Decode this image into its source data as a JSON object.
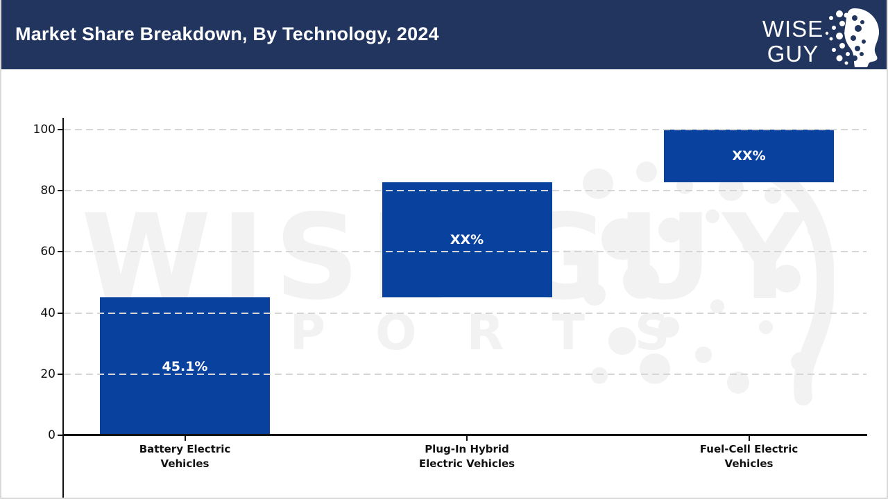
{
  "header": {
    "title": "Market Share Breakdown, By Technology, 2024",
    "logo": {
      "brand_top": "WISE GUY",
      "brand_bottom": "REPORTS"
    }
  },
  "watermark": {
    "line1": "WISE GUY",
    "line2": "REPORTS"
  },
  "colors": {
    "header_bg": "#21355F",
    "bar": "#09419E",
    "grid": "#D6D6D6",
    "axis": "#111111",
    "value_label": "#FFFFFF",
    "watermark": "#F2F2F2",
    "frame_border": "#D9D9D9"
  },
  "chart_data": {
    "type": "bar",
    "subtype": "waterfall",
    "title": "Market Share Breakdown, By Technology, 2024",
    "xlabel": "",
    "ylabel": "",
    "categories": [
      "Battery Electric\nVehicles",
      "Plug-In Hybrid\nElectric Vehicles",
      "Fuel-Cell Electric\nVehicles"
    ],
    "segments": [
      {
        "category": "Battery Electric Vehicles",
        "label": "45.1%",
        "start": 0,
        "end": 45.1
      },
      {
        "category": "Plug-In Hybrid Electric Vehicles",
        "label": "XX%",
        "start": 45.1,
        "end": 82.8
      },
      {
        "category": "Fuel-Cell Electric Vehicles",
        "label": "XX%",
        "start": 82.8,
        "end": 100
      }
    ],
    "values_displayed": [
      "45.1%",
      "XX%",
      "XX%"
    ],
    "yticks": [
      0,
      20,
      40,
      60,
      80,
      100
    ],
    "ylim": [
      0,
      104
    ],
    "grid": "horizontal dashed, drawn above bars",
    "legend": "none"
  }
}
